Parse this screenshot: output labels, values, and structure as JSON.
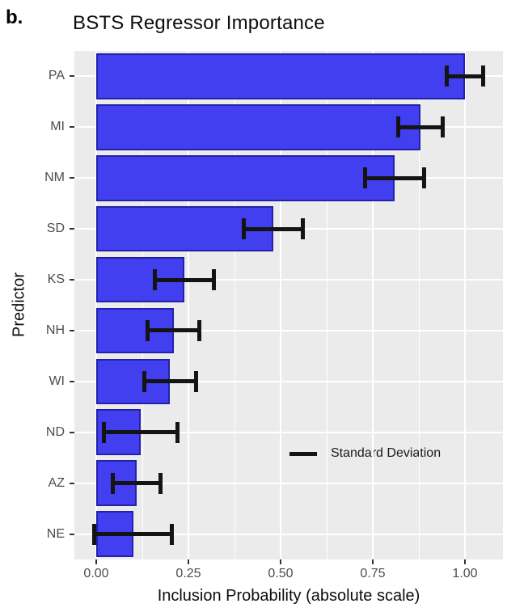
{
  "figure": {
    "panel_label": "b."
  },
  "chart_data": {
    "type": "bar",
    "orientation": "horizontal",
    "title": "BSTS Regressor Importance",
    "xlabel": "Inclusion Probability (absolute scale)",
    "ylabel": "Predictor",
    "categories": [
      "PA",
      "MI",
      "NM",
      "SD",
      "KS",
      "NH",
      "WI",
      "ND",
      "AZ",
      "NE"
    ],
    "values": [
      1.0,
      0.88,
      0.81,
      0.48,
      0.24,
      0.21,
      0.2,
      0.12,
      0.11,
      0.1
    ],
    "error_sd": [
      0.05,
      0.06,
      0.08,
      0.08,
      0.08,
      0.07,
      0.07,
      0.1,
      0.065,
      0.105
    ],
    "x_tick_labels": [
      "0.00",
      "0.25",
      "0.50",
      "0.75",
      "1.00"
    ],
    "x_tick_values": [
      0,
      0.25,
      0.5,
      0.75,
      1.0
    ],
    "x_minor_values": [
      0.125,
      0.375,
      0.625,
      0.875
    ],
    "xlim": [
      -0.06,
      1.1
    ],
    "grid": "on",
    "legend": {
      "label": "Standard Deviation",
      "position": "inside-right"
    },
    "colors": {
      "bar_fill": "#423FF0",
      "bar_stroke": "#2321A8",
      "panel_bg": "#EBEBEB",
      "grid": "#FFFFFF",
      "error_bar": "#141414",
      "tick_label": "#4D4D4D",
      "axis_title": "#0D0D0D",
      "title": "#0D0D0D"
    }
  }
}
